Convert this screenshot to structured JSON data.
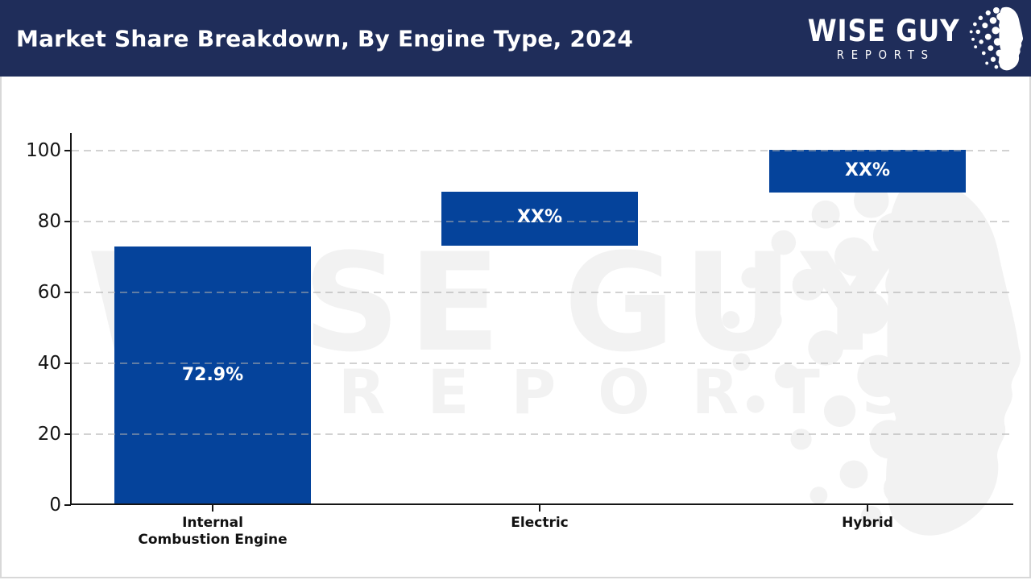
{
  "header": {
    "title": "Market Share Breakdown, By Engine Type, 2024",
    "bg_color": "#1f2d5a",
    "logo": {
      "line1": "WISE GUY",
      "line2": "REPORTS"
    }
  },
  "watermark": {
    "line1": "WISE GUY",
    "line2": "REPORTS"
  },
  "chart_data": {
    "type": "bar",
    "subtype": "waterfall-stacked-to-100",
    "title": "Market Share Breakdown, By Engine Type, 2024",
    "xlabel": "",
    "ylabel": "",
    "ylim": [
      0,
      105
    ],
    "yticks": [
      0,
      20,
      40,
      60,
      80,
      100
    ],
    "grid": "horizontal-dashed",
    "legend": "none",
    "bar_color": "#05439b",
    "bars": [
      {
        "id": "internal-combustion-engine",
        "label_lines": [
          "Internal",
          "Combustion Engine"
        ],
        "start": 0,
        "end": 72.9,
        "value_label": "72.9%"
      },
      {
        "id": "electric",
        "label_lines": [
          "Electric"
        ],
        "start": 73.2,
        "end": 88.4,
        "value_label": "XX%"
      },
      {
        "id": "hybrid",
        "label_lines": [
          "Hybrid"
        ],
        "start": 88.2,
        "end": 100.2,
        "value_label": "XX%"
      }
    ]
  }
}
